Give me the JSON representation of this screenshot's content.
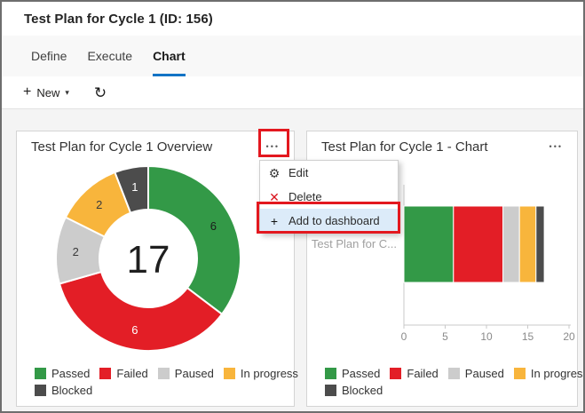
{
  "page": {
    "title": "Test Plan for Cycle 1 (ID: 156)"
  },
  "tabs": [
    {
      "label": "Define",
      "active": false
    },
    {
      "label": "Execute",
      "active": false
    },
    {
      "label": "Chart",
      "active": true
    }
  ],
  "toolbar": {
    "new_label": "New"
  },
  "icons": {
    "plus": "+",
    "chevron_down": "▾",
    "refresh": "↻",
    "ellipsis": "•••"
  },
  "colors": {
    "accent": "#1273c5",
    "annotation_red": "#e3181f",
    "menu_highlight": "#dcebf9",
    "passed_green": "#339947",
    "failed_red": "#e31e26",
    "paused_gray": "#cccccc",
    "inprogress_yellow": "#f8b53c",
    "blocked_darkgray": "#4c4c4c"
  },
  "context_menu": {
    "items": [
      {
        "icon": "gear-icon",
        "glyph": "⚙",
        "icon_color": "#3b3b3b",
        "label": "Edit",
        "highlighted": false
      },
      {
        "icon": "delete-x-icon",
        "glyph": "✕",
        "icon_color": "#d9151e",
        "label": "Delete",
        "highlighted": false
      },
      {
        "icon": "plus-icon",
        "glyph": "+",
        "icon_color": "#111111",
        "label": "Add to dashboard",
        "highlighted": true
      }
    ]
  },
  "chart_data": [
    {
      "type": "pie",
      "donut": true,
      "title": "Test Plan for Cycle 1 Overview",
      "center_label": "17",
      "total": 17,
      "legend_position": "bottom",
      "series": [
        {
          "name": "Passed",
          "value": 6,
          "color": "#339947",
          "label_color": "#1b1b1b"
        },
        {
          "name": "Failed",
          "value": 6,
          "color": "#e31e26",
          "label_color": "#ffffff"
        },
        {
          "name": "Paused",
          "value": 2,
          "color": "#cccccc",
          "label_color": "#3a3a3a"
        },
        {
          "name": "In progress",
          "value": 2,
          "color": "#f8b53c",
          "label_color": "#3a3a3a"
        },
        {
          "name": "Blocked",
          "value": 1,
          "color": "#4c4c4c",
          "label_color": "#ffffff"
        }
      ]
    },
    {
      "type": "bar",
      "orientation": "horizontal",
      "stacked": true,
      "title": "Test Plan for Cycle 1 - Chart",
      "category_label": "Test Plan for C...",
      "xlim": [
        0,
        20
      ],
      "xticks": [
        0,
        5,
        10,
        15,
        20
      ],
      "legend_position": "bottom",
      "series": [
        {
          "name": "Passed",
          "value": 6,
          "color": "#339947"
        },
        {
          "name": "Failed",
          "value": 6,
          "color": "#e31e26"
        },
        {
          "name": "Paused",
          "value": 2,
          "color": "#cccccc"
        },
        {
          "name": "In progress",
          "value": 2,
          "color": "#f8b53c"
        },
        {
          "name": "Blocked",
          "value": 1,
          "color": "#4c4c4c"
        }
      ]
    }
  ]
}
